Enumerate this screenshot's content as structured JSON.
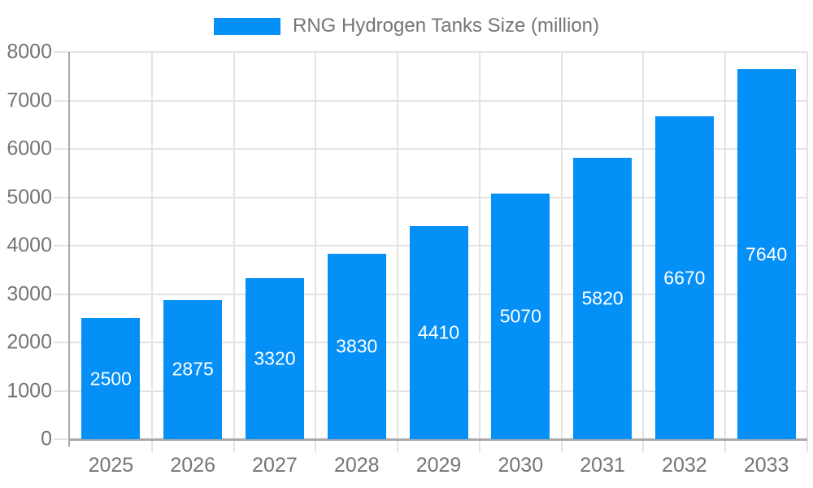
{
  "chart_data": {
    "type": "bar",
    "title": "RNG Hydrogen Tanks Size (million)",
    "categories": [
      "2025",
      "2026",
      "2027",
      "2028",
      "2029",
      "2030",
      "2031",
      "2032",
      "2033"
    ],
    "values": [
      2500,
      2875,
      3320,
      3830,
      4410,
      5070,
      5820,
      6670,
      7640
    ],
    "series_name": "RNG Hydrogen Tanks Size (million)",
    "ylim": [
      0,
      8000
    ],
    "ytick_step": 1000,
    "ytick_labels": [
      "0",
      "1000",
      "2000",
      "3000",
      "4000",
      "5000",
      "6000",
      "7000",
      "8000"
    ],
    "grid": true,
    "legend_position": "top-center",
    "bar_labels_visible": true,
    "colors": {
      "bar": "#0590f8",
      "grid": "#e3e3e3",
      "axis": "#aaaaaa",
      "tick_text": "#757575",
      "bar_label_text": "#ffffff",
      "background": "#ffffff"
    }
  }
}
